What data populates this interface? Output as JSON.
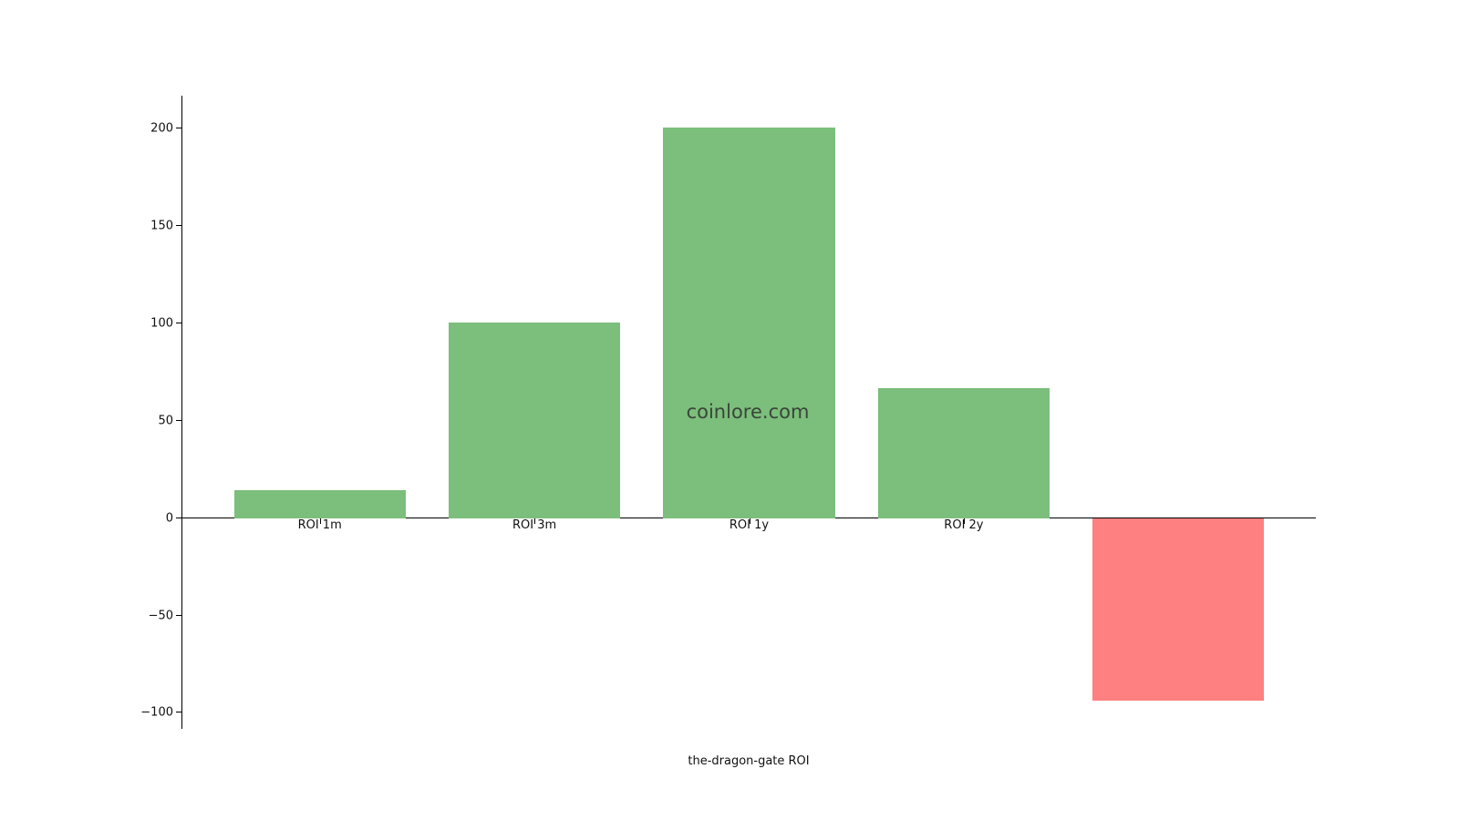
{
  "watermark_text": "coinlore.com",
  "chart_data": {
    "type": "bar",
    "title": "",
    "xlabel": "the-dragon-gate ROI",
    "ylabel": "",
    "watermark": "coinlore.com",
    "categories": [
      "ROI 1m",
      "ROI 3m",
      "ROI 1y",
      "ROI 2y",
      ""
    ],
    "values": [
      14.4,
      100.5,
      200.8,
      67,
      -93.5
    ],
    "yticks": [
      -100,
      -50,
      0,
      50,
      100,
      150,
      200
    ],
    "ylim": [
      -108,
      217
    ],
    "xlim": [
      -0.64,
      4.64
    ],
    "bar_width": 0.8,
    "grid": false,
    "legend": null,
    "colors": {
      "positive_bar": "#7cbe7c",
      "negative_bar": "#ff8080",
      "axis": "#000000",
      "text": "#111111",
      "background": "#ffffff"
    }
  }
}
